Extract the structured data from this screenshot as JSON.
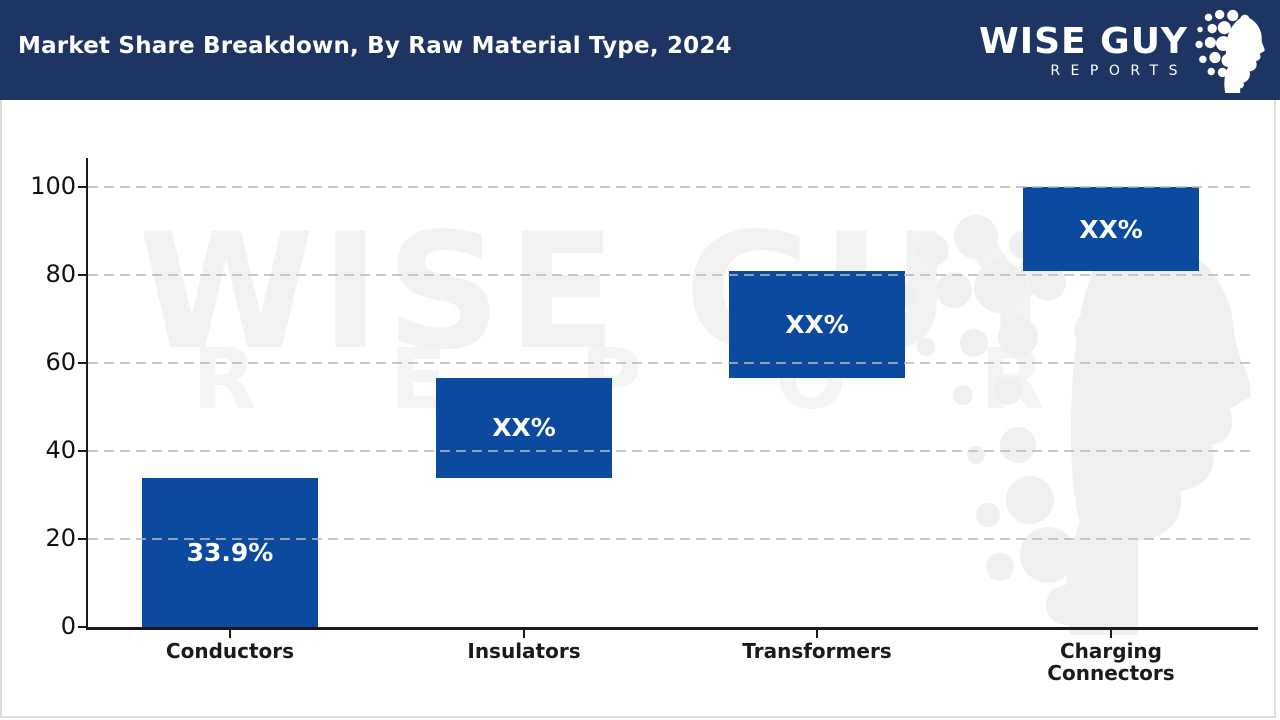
{
  "header": {
    "title": "Market Share Breakdown, By Raw Material Type, 2024",
    "background_color": "#1E3462",
    "logo": {
      "name_line": "WISE GUY",
      "sub_line": "REPORTS"
    }
  },
  "watermark": {
    "line1": "WISE GUY",
    "line2": "R E P O R T S"
  },
  "chart_data": {
    "type": "bar",
    "subtype": "waterfall",
    "title": "Market Share Breakdown, By Raw Material Type, 2024",
    "categories": [
      "Conductors",
      "Insulators",
      "Transformers",
      "Charging Connectors"
    ],
    "segments": [
      {
        "category": "Conductors",
        "start": 0,
        "end": 33.9,
        "label": "33.9%"
      },
      {
        "category": "Insulators",
        "start": 33.9,
        "end": 56.6,
        "label": "XX%"
      },
      {
        "category": "Transformers",
        "start": 56.6,
        "end": 80.8,
        "label": "XX%"
      },
      {
        "category": "Charging Connectors",
        "start": 80.8,
        "end": 100,
        "label": "XX%"
      }
    ],
    "y_axis": {
      "tick_values": [
        0,
        20,
        40,
        60,
        80,
        100
      ],
      "range": [
        0,
        106
      ],
      "gridlines": "dashed"
    },
    "x_axis": {
      "categories": [
        "Conductors",
        "Insulators",
        "Transformers",
        "Charging Connectors"
      ]
    },
    "legend": false,
    "bar_color": "#0B4A9E",
    "value_label_color": "#FFFFFF",
    "grid_color": "#D8D8D8",
    "axis_color": "#1A1A1A"
  }
}
